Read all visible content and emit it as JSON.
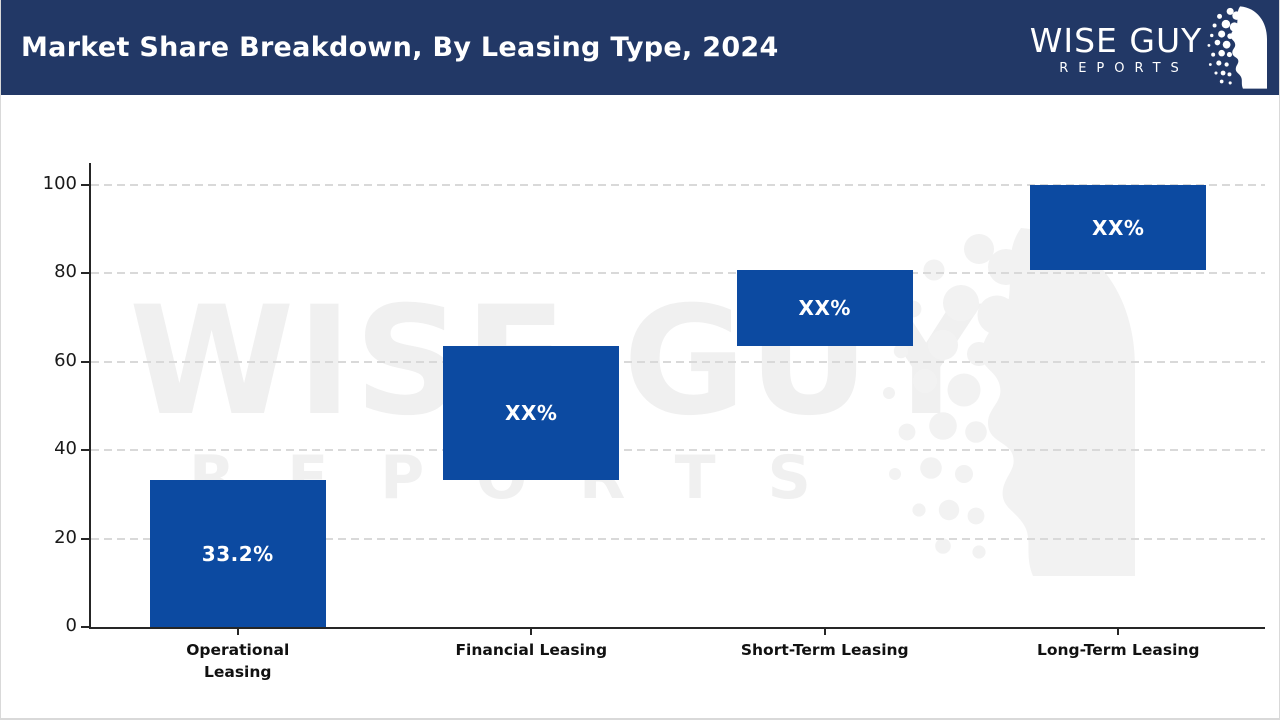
{
  "header": {
    "title": "Market Share Breakdown, By Leasing Type, 2024",
    "bg_color": "#223866",
    "logo": {
      "line1": "WISE GUY",
      "line2": "REPORTS"
    }
  },
  "watermark": {
    "line1": "WISE GUY",
    "line2": "REPORTS"
  },
  "chart_data": {
    "type": "bar",
    "subtype": "waterfall-stacked-segments",
    "title": "Market Share Breakdown, By Leasing Type, 2024",
    "categories": [
      "Operational\nLeasing",
      "Financial Leasing",
      "Short-Term Leasing",
      "Long-Term Leasing"
    ],
    "series": [
      {
        "name": "Market share (%)",
        "segments": [
          {
            "category": "Operational Leasing",
            "start": 0,
            "end": 33.2,
            "label": "33.2%"
          },
          {
            "category": "Financial Leasing",
            "start": 33.2,
            "end": 63.5,
            "label": "XX%"
          },
          {
            "category": "Short-Term Leasing",
            "start": 63.5,
            "end": 80.8,
            "label": "XX%"
          },
          {
            "category": "Long-Term Leasing",
            "start": 80.8,
            "end": 100,
            "label": "XX%"
          }
        ]
      }
    ],
    "xlabel": "",
    "ylabel": "",
    "ylim": [
      0,
      105
    ],
    "yticks": [
      0,
      20,
      40,
      60,
      80,
      100
    ],
    "grid": "horizontal-dashed",
    "legend": "none",
    "bar_color": "#0c4aa1",
    "bar_label_color": "#ffffff",
    "axis_color": "#262626",
    "grid_color": "#d9d9d9"
  }
}
